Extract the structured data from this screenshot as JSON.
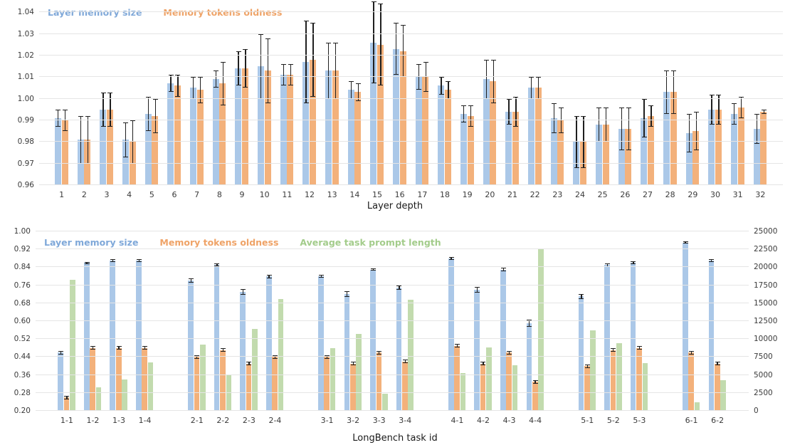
{
  "page": {
    "background": "#ffffff"
  },
  "chart_data": [
    {
      "type": "bar",
      "title": "",
      "xlabel": "Layer depth",
      "ylabel": "",
      "ylim": [
        0.96,
        1.045
      ],
      "ydecimals": 2,
      "yticks": [
        0.96,
        0.97,
        0.98,
        0.99,
        1.0,
        1.01,
        1.02,
        1.03,
        1.04
      ],
      "grid": true,
      "legend_position": "top-left",
      "bar_frac": 0.31,
      "edge_pad": 0.5,
      "categories": [
        "1",
        "2",
        "3",
        "4",
        "5",
        "6",
        "7",
        "8",
        "9",
        "10",
        "11",
        "12",
        "13",
        "14",
        "15",
        "16",
        "17",
        "18",
        "19",
        "20",
        "21",
        "22",
        "23",
        "24",
        "25",
        "26",
        "27",
        "28",
        "29",
        "30",
        "31",
        "32"
      ],
      "series": [
        {
          "name": "Layer memory size",
          "color": "#abc8e8",
          "label_color": "#7fa8d9",
          "values": [
            0.991,
            0.981,
            0.995,
            0.981,
            0.993,
            1.007,
            1.005,
            1.009,
            1.014,
            1.015,
            1.011,
            1.017,
            1.013,
            1.004,
            1.026,
            1.023,
            1.01,
            1.006,
            0.993,
            1.009,
            0.994,
            1.005,
            0.991,
            0.98,
            0.988,
            0.986,
            0.991,
            1.003,
            0.984,
            0.995,
            0.993,
            0.986
          ],
          "errors": [
            0.004,
            0.011,
            0.008,
            0.008,
            0.008,
            0.004,
            0.005,
            0.004,
            0.008,
            0.015,
            0.005,
            0.019,
            0.013,
            0.004,
            0.019,
            0.012,
            0.006,
            0.004,
            0.004,
            0.009,
            0.006,
            0.005,
            0.007,
            0.012,
            0.008,
            0.01,
            0.009,
            0.01,
            0.009,
            0.007,
            0.005,
            0.007
          ]
        },
        {
          "name": "Memory tokens oldness",
          "color": "#f3b17b",
          "label_color": "#efa367",
          "values": [
            0.99,
            0.981,
            0.995,
            0.98,
            0.992,
            1.006,
            1.004,
            1.007,
            1.014,
            1.013,
            1.011,
            1.018,
            1.013,
            1.003,
            1.025,
            1.022,
            1.01,
            1.004,
            0.992,
            1.008,
            0.994,
            1.005,
            0.99,
            0.98,
            0.988,
            0.986,
            0.992,
            1.003,
            0.985,
            0.995,
            0.996,
            0.994
          ],
          "errors": [
            0.005,
            0.011,
            0.008,
            0.01,
            0.008,
            0.005,
            0.006,
            0.01,
            0.009,
            0.015,
            0.005,
            0.017,
            0.013,
            0.004,
            0.019,
            0.012,
            0.007,
            0.004,
            0.005,
            0.01,
            0.007,
            0.005,
            0.006,
            0.012,
            0.008,
            0.01,
            0.005,
            0.01,
            0.009,
            0.007,
            0.005,
            0.001
          ]
        }
      ]
    },
    {
      "type": "bar",
      "title": "",
      "xlabel": "LongBench task id",
      "ylabel": "",
      "ylim": [
        0.2,
        1.0
      ],
      "ydecimals": 2,
      "yticks": [
        0.2,
        0.28,
        0.36,
        0.44,
        0.52,
        0.6,
        0.68,
        0.76,
        0.84,
        0.92,
        1.0
      ],
      "ylim2": [
        0,
        25000
      ],
      "y2ticks": [
        0,
        2500,
        5000,
        7500,
        10000,
        12500,
        15000,
        17500,
        20000,
        22500,
        25000
      ],
      "grid": true,
      "legend_position": "top-left",
      "bar_frac": 0.23,
      "edge_pad": 0.7,
      "group_gap": 1.0,
      "group_breaks": [
        4,
        8,
        12,
        16,
        19
      ],
      "categories": [
        "1-1",
        "1-2",
        "1-3",
        "1-4",
        "2-1",
        "2-2",
        "2-3",
        "2-4",
        "3-1",
        "3-2",
        "3-3",
        "3-4",
        "4-1",
        "4-2",
        "4-3",
        "4-4",
        "5-1",
        "5-2",
        "5-3",
        "6-1",
        "6-2"
      ],
      "series": [
        {
          "name": "Layer memory size",
          "color": "#abc8e8",
          "label_color": "#7fa8d9",
          "values": [
            0.46,
            0.86,
            0.87,
            0.87,
            0.78,
            0.85,
            0.73,
            0.8,
            0.8,
            0.72,
            0.83,
            0.75,
            0.88,
            0.74,
            0.83,
            0.59,
            0.71,
            0.85,
            0.86,
            0.95,
            0.87
          ],
          "errors": [
            0.008,
            0.005,
            0.006,
            0.005,
            0.01,
            0.006,
            0.012,
            0.008,
            0.007,
            0.012,
            0.005,
            0.01,
            0.006,
            0.012,
            0.008,
            0.015,
            0.012,
            0.008,
            0.006,
            0.005,
            0.007
          ]
        },
        {
          "name": "Memory tokens oldness",
          "color": "#f3b17b",
          "label_color": "#efa367",
          "values": [
            0.26,
            0.48,
            0.48,
            0.48,
            0.44,
            0.47,
            0.41,
            0.44,
            0.44,
            0.41,
            0.46,
            0.42,
            0.49,
            0.41,
            0.46,
            0.33,
            0.4,
            0.47,
            0.48,
            0.46,
            0.41
          ],
          "errors": [
            0.008,
            0.008,
            0.008,
            0.008,
            0.008,
            0.008,
            0.008,
            0.008,
            0.008,
            0.008,
            0.008,
            0.008,
            0.008,
            0.008,
            0.008,
            0.008,
            0.008,
            0.008,
            0.008,
            0.008,
            0.008
          ]
        },
        {
          "name": "Average task prompt length",
          "axis": "right",
          "color": "#c2dbae",
          "label_color": "#a3cc8b",
          "values": [
            18300,
            3300,
            4400,
            6700,
            9200,
            5000,
            11400,
            15600,
            8700,
            10700,
            2400,
            15500,
            5300,
            8800,
            6400,
            22500,
            11200,
            9400,
            6600,
            1200,
            4300
          ]
        }
      ]
    }
  ]
}
